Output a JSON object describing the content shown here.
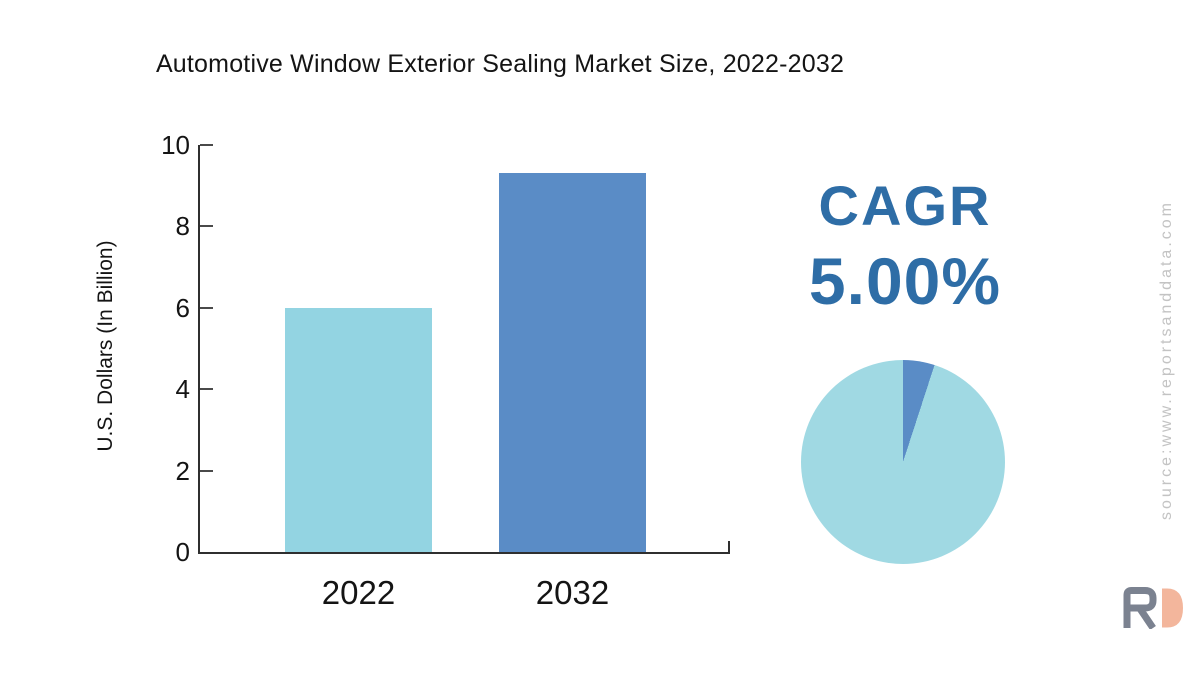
{
  "chart_data": {
    "type": "bar",
    "title": "Automotive Window Exterior Sealing Market Size, 2022-2032",
    "categories": [
      "2022",
      "2032"
    ],
    "values": [
      6.0,
      9.3
    ],
    "bar_colors": [
      "#93d4e2",
      "#5a8cc6"
    ],
    "xlabel": "",
    "ylabel": "U.S. Dollars (In Billion)",
    "ylim": [
      0,
      10
    ],
    "yticks": [
      0,
      2,
      4,
      6,
      8,
      10
    ],
    "grid": false,
    "legend": false
  },
  "cagr": {
    "label": "CAGR",
    "value": "5.00%",
    "color": "#2e6da6"
  },
  "pie": {
    "slices": [
      {
        "name": "highlight",
        "percent": 5,
        "color": "#5a8cc6"
      },
      {
        "name": "remainder",
        "percent": 95,
        "color": "#a0d9e3"
      }
    ]
  },
  "source": {
    "text": "source:www.reportsanddata.com",
    "color": "#c3c3c3"
  },
  "logo": {
    "letters": "RD",
    "r_color": "#7b8290",
    "d_color": "#f3b69c"
  }
}
